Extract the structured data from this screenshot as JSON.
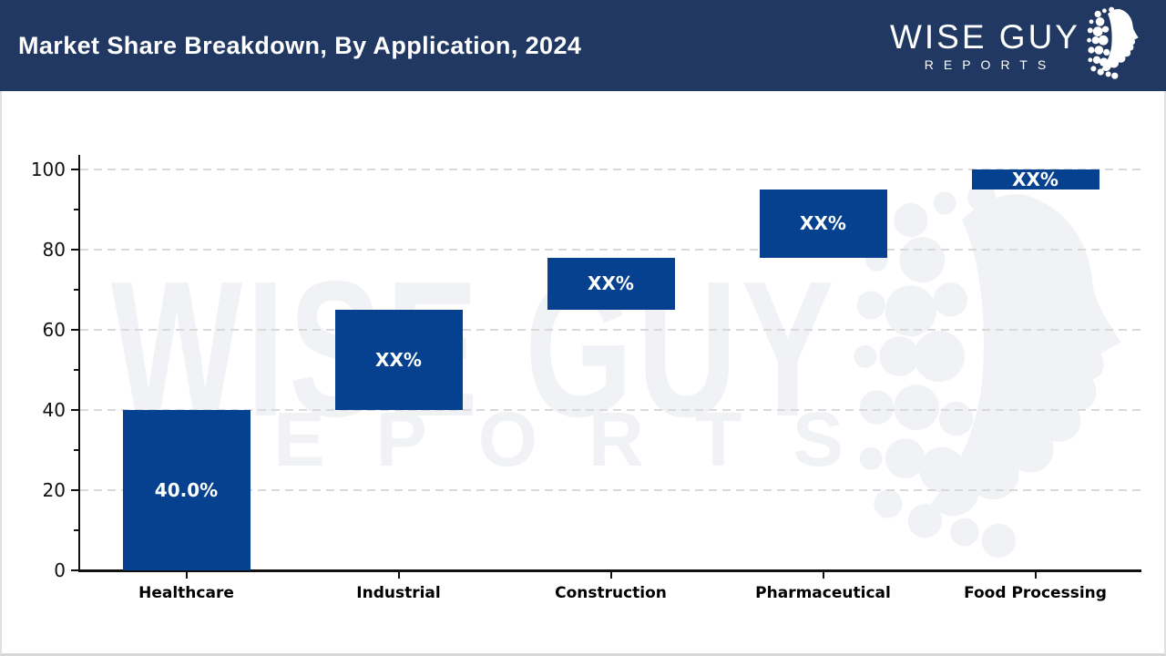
{
  "header": {
    "title": "Market Share Breakdown, By Application, 2024",
    "logo": {
      "wordmark": "WISE GUY",
      "subtitle": "REPORTS"
    }
  },
  "watermark": {
    "wordmark": "WISE GUY",
    "subtitle": "REPORTS"
  },
  "colors": {
    "header_bg": "#213863",
    "bar": "#05418F",
    "bar_label": "#FFFFFF",
    "grid": "#D9D9D9",
    "axis": "#111111",
    "watermark": "#F1F2F5"
  },
  "chart_data": {
    "type": "bar",
    "subtype": "waterfall",
    "title": "Market Share Breakdown, By Application, 2024",
    "categories": [
      "Healthcare",
      "Industrial",
      "Construction",
      "Pharmaceutical",
      "Food Processing"
    ],
    "series": [
      {
        "name": "Market Share",
        "segments": [
          {
            "category": "Healthcare",
            "start": 0,
            "end": 40,
            "label": "40.0%"
          },
          {
            "category": "Industrial",
            "start": 40,
            "end": 65,
            "label": "XX%"
          },
          {
            "category": "Construction",
            "start": 65,
            "end": 78,
            "label": "XX%"
          },
          {
            "category": "Pharmaceutical",
            "start": 78,
            "end": 95,
            "label": "XX%"
          },
          {
            "category": "Food Processing",
            "start": 95,
            "end": 100,
            "label": "XX%"
          }
        ]
      }
    ],
    "xlabel": "",
    "ylabel": "",
    "y_ticks": [
      0,
      20,
      40,
      60,
      80,
      100
    ],
    "y_minor_ticks": [
      10,
      30,
      50,
      70,
      90
    ],
    "ylim": [
      0,
      103.6
    ],
    "grid": "horizontal-dashed",
    "legend": "none"
  }
}
